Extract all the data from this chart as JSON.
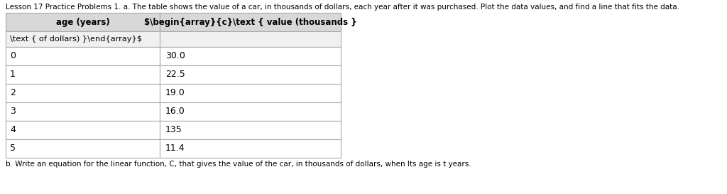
{
  "title": "Lesson 17 Practice Problems 1. a. The table shows the value of a car, in thousands of dollars, each year after it was purchased. Plot the data values, and find a line that fits the data.",
  "header_col1": "age (years)",
  "header_col2": "$\\begin{array}{c}\\text { value (thousands }",
  "subheader_col1": "\\text { of dollars) }\\end{array}$",
  "subheader_col2": "",
  "col1_values": [
    "0",
    "1",
    "2",
    "3",
    "4",
    "5"
  ],
  "col2_values": [
    "30.0",
    "22.5",
    "19.0",
    "16.0",
    "135",
    "11.4"
  ],
  "footer": "b. Write an equation for the linear function, C, that gives the value of the car, in thousands of dollars, when Its age is t years.",
  "bg_color": "#ffffff",
  "text_color": "#000000",
  "border_color": "#aaaaaa",
  "header_bg": "#d8d8d8",
  "subheader_bg": "#f0f0f0",
  "data_bg": "#ffffff"
}
